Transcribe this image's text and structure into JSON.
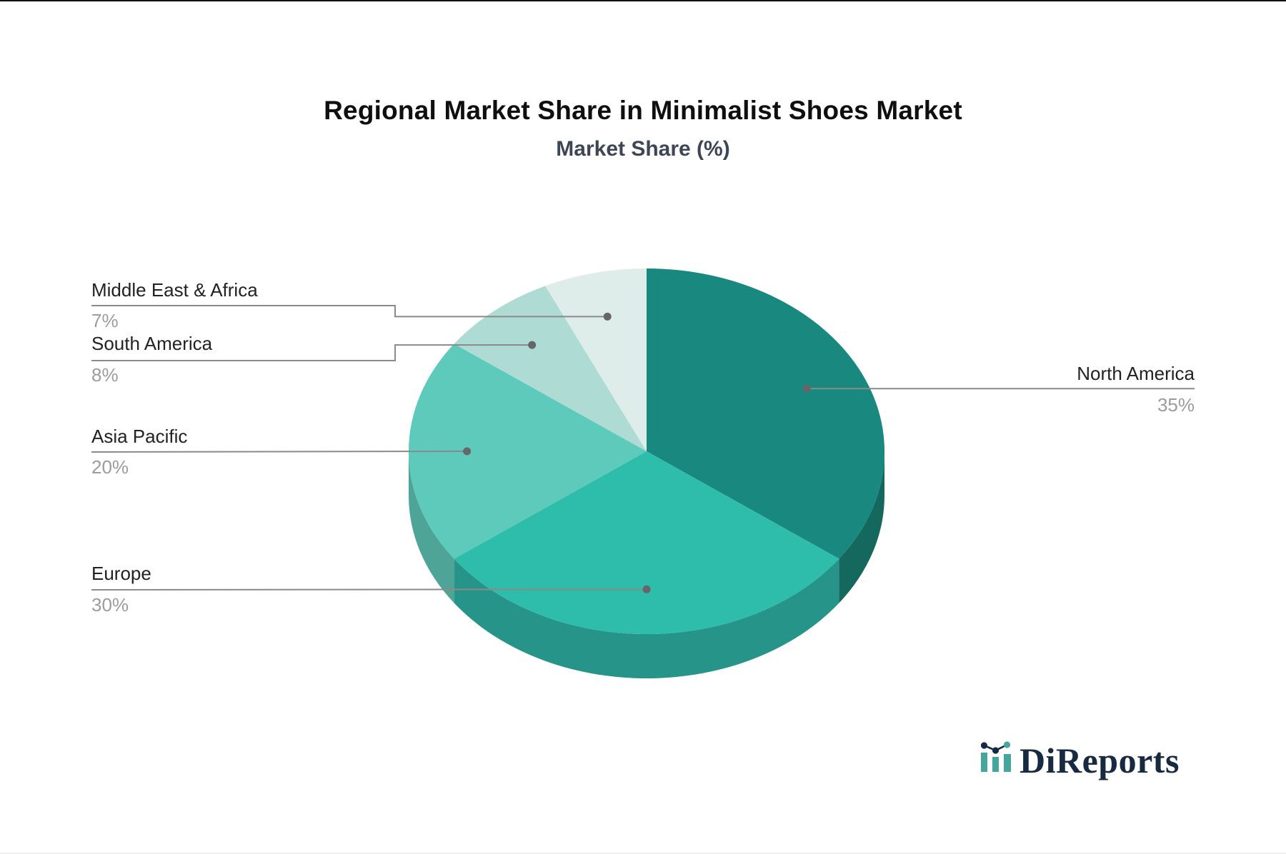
{
  "title": "Regional Market Share in Minimalist Shoes Market",
  "subtitle": "Market Share (%)",
  "brand": {
    "name": "DiReports"
  },
  "style": {
    "leader_line_color": "#8a8a8a",
    "dot_color": "#666666",
    "label_name_color": "#222222",
    "label_value_color": "#9c9c9c",
    "title_color": "#0f0f0f",
    "subtitle_color": "#3d4656",
    "logo_teal": "#45a79b",
    "logo_navy": "#182a42"
  },
  "chart_data": {
    "type": "pie",
    "style": "3d",
    "title": "Regional Market Share in Minimalist Shoes Market",
    "subtitle": "Market Share (%)",
    "unit": "%",
    "direction": "clockwise",
    "start_angle_deg": 0,
    "labels": [
      "North America",
      "Europe",
      "Asia Pacific",
      "South America",
      "Middle East & Africa"
    ],
    "values": [
      35,
      30,
      20,
      8,
      7
    ],
    "display_values": [
      "35%",
      "30%",
      "20%",
      "8%",
      "7%"
    ],
    "slice_colors": [
      "#19887e",
      "#2ebcab",
      "#5ecabb",
      "#aedcd5",
      "#dfedea"
    ],
    "slice_side_colors": [
      "#14685e",
      "#27948a",
      "#4fa498",
      null,
      null
    ],
    "legend_position": "callout-labels"
  }
}
